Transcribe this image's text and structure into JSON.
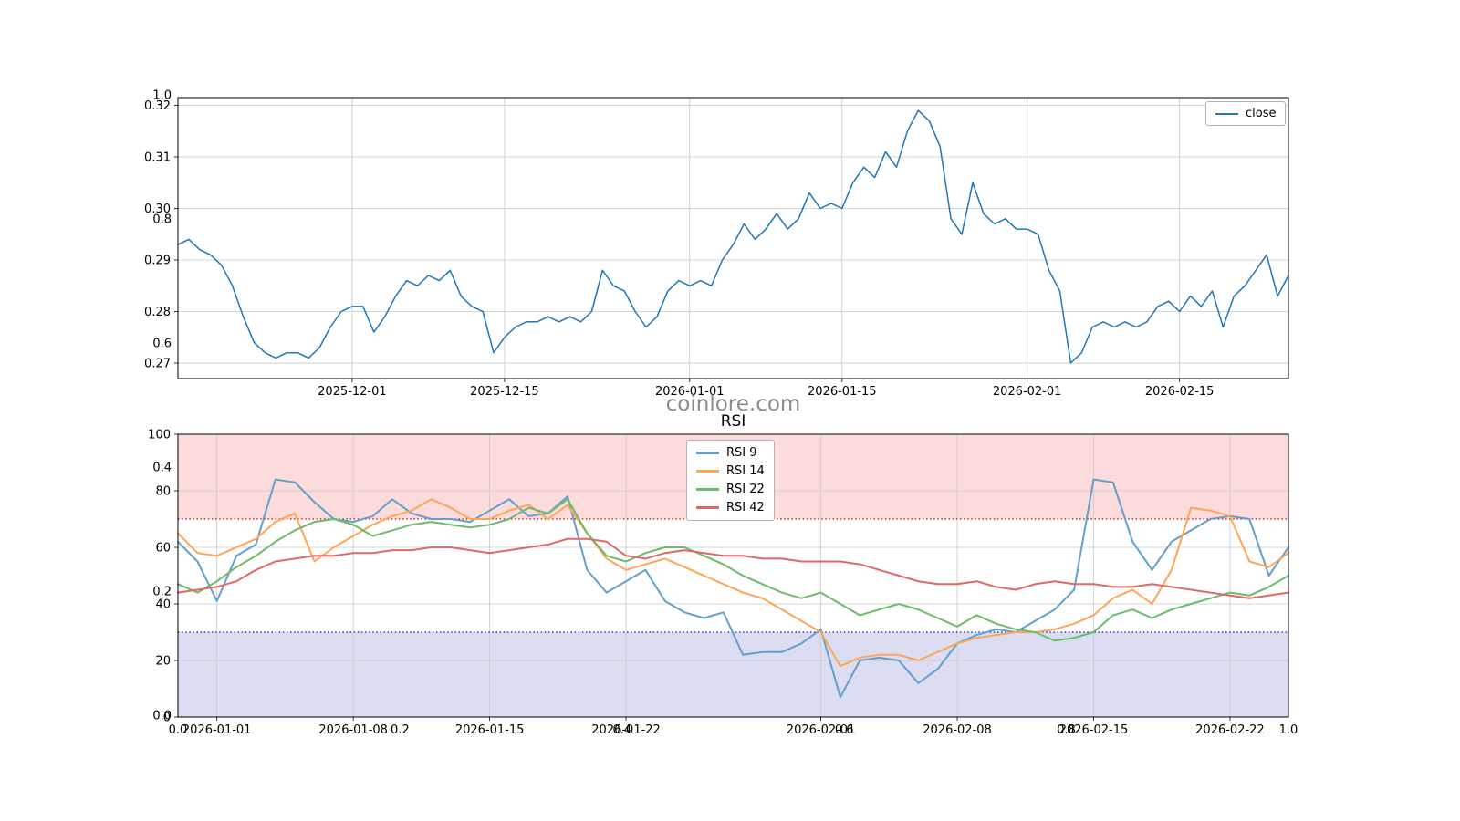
{
  "watermark": "coinlore.com",
  "colors": {
    "close": "#1f77b4",
    "rsi_9": "#62a0cb",
    "rsi_14": "#ffa556",
    "rsi_22": "#6bbc6b",
    "rsi_42": "#e26868",
    "overbought_band": "#fbdbdb",
    "oversold_band": "#dcdcf3",
    "overbought_line": "#cc0000",
    "oversold_line": "#1111bb",
    "grid": "#c9c9c9",
    "axis": "#000000",
    "watermark": "#8c8c8c"
  },
  "stray_axis": {
    "y_ticks": [
      "1.0",
      "0.8",
      "0.6",
      "0.4",
      "0.2",
      "0.0"
    ],
    "x_ticks": [
      "0.0",
      "0.2",
      "0.4",
      "0.6",
      "0.8",
      "1.0"
    ]
  },
  "chart_data": [
    {
      "type": "line",
      "title": "",
      "xlabel": "",
      "ylabel": "",
      "grid": true,
      "legend_position": "upper right",
      "ylim": [
        0.267,
        0.3215
      ],
      "y_ticks": [
        {
          "value": 0.27,
          "label": "0.27"
        },
        {
          "value": 0.28,
          "label": "0.28"
        },
        {
          "value": 0.29,
          "label": "0.29"
        },
        {
          "value": 0.3,
          "label": "0.30"
        },
        {
          "value": 0.31,
          "label": "0.31"
        },
        {
          "value": 0.32,
          "label": "0.32"
        }
      ],
      "x_ticks": [
        {
          "index": 16,
          "label": "2025-12-01"
        },
        {
          "index": 30,
          "label": "2025-12-15"
        },
        {
          "index": 47,
          "label": "2026-01-01"
        },
        {
          "index": 61,
          "label": "2026-01-15"
        },
        {
          "index": 78,
          "label": "2026-02-01"
        },
        {
          "index": 92,
          "label": "2026-02-15"
        }
      ],
      "series": [
        {
          "name": "close",
          "color_key": "close",
          "values": [
            0.293,
            0.294,
            0.292,
            0.291,
            0.289,
            0.285,
            0.279,
            0.274,
            0.272,
            0.271,
            0.272,
            0.272,
            0.271,
            0.273,
            0.277,
            0.28,
            0.281,
            0.281,
            0.276,
            0.279,
            0.283,
            0.286,
            0.285,
            0.287,
            0.286,
            0.288,
            0.283,
            0.281,
            0.28,
            0.272,
            0.275,
            0.277,
            0.278,
            0.278,
            0.279,
            0.278,
            0.279,
            0.278,
            0.28,
            0.288,
            0.285,
            0.284,
            0.28,
            0.277,
            0.279,
            0.284,
            0.286,
            0.285,
            0.286,
            0.285,
            0.29,
            0.293,
            0.297,
            0.294,
            0.296,
            0.299,
            0.296,
            0.298,
            0.303,
            0.3,
            0.301,
            0.3,
            0.305,
            0.308,
            0.306,
            0.311,
            0.308,
            0.315,
            0.319,
            0.317,
            0.312,
            0.298,
            0.295,
            0.305,
            0.299,
            0.297,
            0.298,
            0.296,
            0.296,
            0.295,
            0.288,
            0.284,
            0.27,
            0.272,
            0.277,
            0.278,
            0.277,
            0.278,
            0.277,
            0.278,
            0.281,
            0.282,
            0.28,
            0.283,
            0.281,
            0.284,
            0.277,
            0.283,
            0.285,
            0.288,
            0.291,
            0.283,
            0.287
          ]
        }
      ]
    },
    {
      "type": "line",
      "title": "RSI",
      "xlabel": "",
      "ylabel": "",
      "grid": true,
      "legend_position": "upper center",
      "ylim": [
        0,
        100
      ],
      "y_ticks": [
        {
          "value": 0,
          "label": "0"
        },
        {
          "value": 20,
          "label": "20"
        },
        {
          "value": 40,
          "label": "40"
        },
        {
          "value": 60,
          "label": "60"
        },
        {
          "value": 80,
          "label": "80"
        },
        {
          "value": 100,
          "label": "100"
        }
      ],
      "x_ticks": [
        {
          "index": 2,
          "label": "2026-01-01"
        },
        {
          "index": 9,
          "label": "2026-01-08"
        },
        {
          "index": 16,
          "label": "2026-01-15"
        },
        {
          "index": 23,
          "label": "2026-01-22"
        },
        {
          "index": 33,
          "label": "2026-02-01"
        },
        {
          "index": 40,
          "label": "2026-02-08"
        },
        {
          "index": 47,
          "label": "2026-02-15"
        },
        {
          "index": 54,
          "label": "2026-02-22"
        }
      ],
      "bands": [
        {
          "from": 70,
          "to": 100,
          "color_key": "overbought_band"
        },
        {
          "from": 0,
          "to": 30,
          "color_key": "oversold_band"
        }
      ],
      "hlines": [
        {
          "y": 70,
          "style": "dotted",
          "color_key": "overbought_line"
        },
        {
          "y": 30,
          "style": "dotted",
          "color_key": "oversold_line"
        }
      ],
      "series": [
        {
          "name": "RSI 9",
          "color_key": "rsi_9",
          "values": [
            62,
            55,
            41,
            57,
            61,
            84,
            83,
            76,
            70,
            69,
            71,
            77,
            72,
            70,
            70,
            69,
            73,
            77,
            71,
            72,
            78,
            52,
            44,
            48,
            52,
            41,
            37,
            35,
            37,
            22,
            23,
            23,
            26,
            31,
            7,
            20,
            21,
            20,
            12,
            17,
            26,
            29,
            31,
            30,
            34,
            38,
            45,
            84,
            83,
            62,
            52,
            62,
            66,
            70,
            71,
            70,
            50,
            60
          ]
        },
        {
          "name": "RSI 14",
          "color_key": "rsi_14",
          "values": [
            65,
            58,
            57,
            60,
            63,
            69,
            72,
            55,
            60,
            64,
            68,
            71,
            73,
            77,
            74,
            70,
            70,
            73,
            75,
            70,
            75,
            65,
            56,
            52,
            54,
            56,
            53,
            50,
            47,
            44,
            42,
            38,
            34,
            30,
            18,
            21,
            22,
            22,
            20,
            23,
            26,
            28,
            29,
            30,
            30,
            31,
            33,
            36,
            42,
            45,
            40,
            52,
            74,
            73,
            71,
            55,
            53,
            58
          ]
        },
        {
          "name": "RSI 22",
          "color_key": "rsi_22",
          "values": [
            47,
            44,
            48,
            53,
            57,
            62,
            66,
            69,
            70,
            68,
            64,
            66,
            68,
            69,
            68,
            67,
            68,
            70,
            74,
            72,
            77,
            65,
            57,
            55,
            58,
            60,
            60,
            57,
            54,
            50,
            47,
            44,
            42,
            44,
            40,
            36,
            38,
            40,
            38,
            35,
            32,
            36,
            33,
            31,
            30,
            27,
            28,
            30,
            36,
            38,
            35,
            38,
            40,
            42,
            44,
            43,
            46,
            50
          ]
        },
        {
          "name": "RSI 42",
          "color_key": "rsi_42",
          "values": [
            44,
            45,
            46,
            48,
            52,
            55,
            56,
            57,
            57,
            58,
            58,
            59,
            59,
            60,
            60,
            59,
            58,
            59,
            60,
            61,
            63,
            63,
            62,
            57,
            56,
            58,
            59,
            58,
            57,
            57,
            56,
            56,
            55,
            55,
            55,
            54,
            52,
            50,
            48,
            47,
            47,
            48,
            46,
            45,
            47,
            48,
            47,
            47,
            46,
            46,
            47,
            46,
            45,
            44,
            43,
            42,
            43,
            44
          ]
        }
      ]
    }
  ]
}
